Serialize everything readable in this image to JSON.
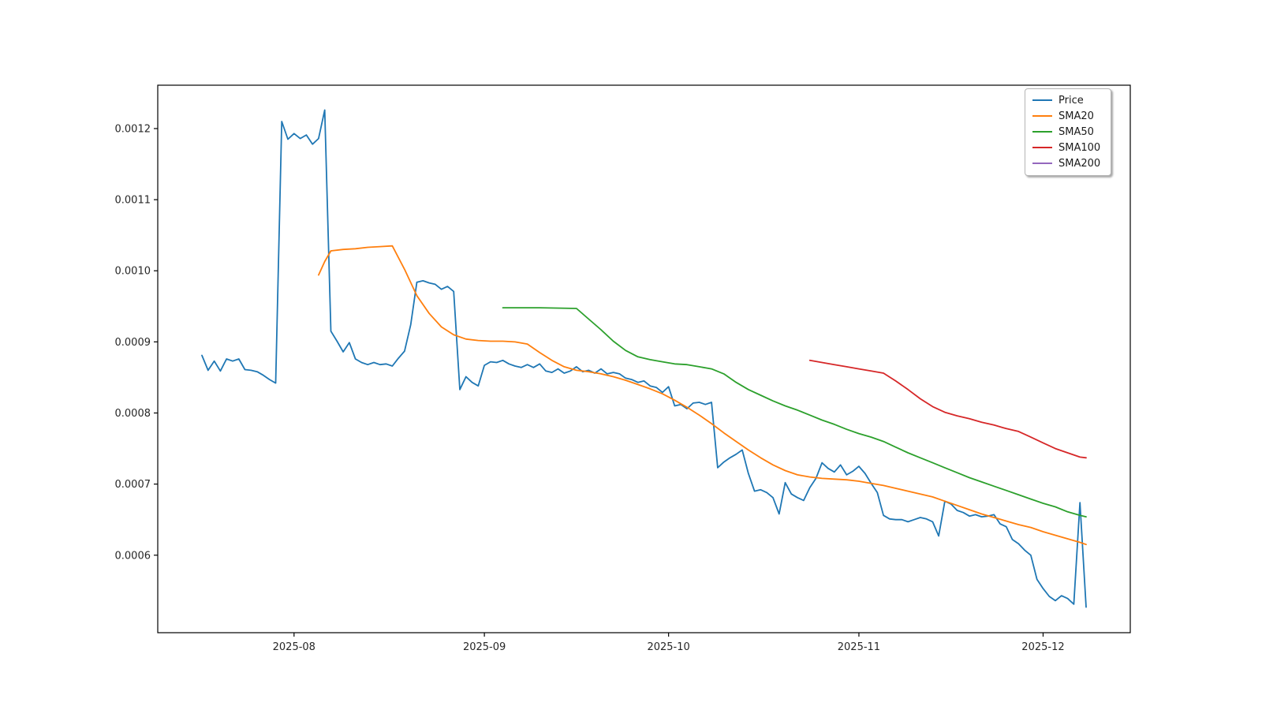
{
  "chart_data": {
    "type": "line",
    "title": "",
    "xlabel": "",
    "ylabel": "",
    "x_axis": {
      "unit": "day_offset",
      "start_date": "2025-07-17",
      "ticks": [
        {
          "day": 15,
          "label": "2025-08"
        },
        {
          "day": 46,
          "label": "2025-09"
        },
        {
          "day": 76,
          "label": "2025-10"
        },
        {
          "day": 107,
          "label": "2025-11"
        },
        {
          "day": 137,
          "label": "2025-12"
        }
      ]
    },
    "y_axis": {
      "ticks": [
        {
          "value": 0.0006,
          "label": "0.0006"
        },
        {
          "value": 0.0007,
          "label": "0.0007"
        },
        {
          "value": 0.0008,
          "label": "0.0008"
        },
        {
          "value": 0.0009,
          "label": "0.0009"
        },
        {
          "value": 0.001,
          "label": "0.0010"
        },
        {
          "value": 0.0011,
          "label": "0.0011"
        },
        {
          "value": 0.0012,
          "label": "0.0012"
        }
      ]
    },
    "xlim": [
      -7.2,
      151.2
    ],
    "ylim": [
      0.000491,
      0.001261
    ],
    "grid": false,
    "frame_color": "#000000",
    "tick_text_color": "#262626",
    "legend": {
      "position": "upper right",
      "entries": [
        "Price",
        "SMA20",
        "SMA50",
        "SMA100",
        "SMA200"
      ]
    },
    "series": [
      {
        "name": "Price",
        "color": "#1f77b4",
        "points": [
          [
            0,
            0.000881
          ],
          [
            1,
            0.00086
          ],
          [
            2,
            0.000873
          ],
          [
            3,
            0.000859
          ],
          [
            4,
            0.000876
          ],
          [
            5,
            0.000873
          ],
          [
            6,
            0.000876
          ],
          [
            7,
            0.000861
          ],
          [
            8,
            0.00086
          ],
          [
            9,
            0.000858
          ],
          [
            10,
            0.000853
          ],
          [
            11,
            0.000847
          ],
          [
            12,
            0.000842
          ],
          [
            13,
            0.00121
          ],
          [
            14,
            0.001185
          ],
          [
            15,
            0.001193
          ],
          [
            16,
            0.001186
          ],
          [
            17,
            0.001191
          ],
          [
            18,
            0.001178
          ],
          [
            19,
            0.001186
          ],
          [
            20,
            0.001226
          ],
          [
            21,
            0.000915
          ],
          [
            22,
            0.000901
          ],
          [
            23,
            0.000886
          ],
          [
            24,
            0.000899
          ],
          [
            25,
            0.000876
          ],
          [
            26,
            0.000871
          ],
          [
            27,
            0.000868
          ],
          [
            28,
            0.000871
          ],
          [
            29,
            0.000868
          ],
          [
            30,
            0.000869
          ],
          [
            31,
            0.000866
          ],
          [
            32,
            0.000877
          ],
          [
            33,
            0.000887
          ],
          [
            34,
            0.000924
          ],
          [
            35,
            0.000984
          ],
          [
            36,
            0.000986
          ],
          [
            37,
            0.000983
          ],
          [
            38,
            0.000981
          ],
          [
            39,
            0.000974
          ],
          [
            40,
            0.000978
          ],
          [
            41,
            0.000971
          ],
          [
            42,
            0.000833
          ],
          [
            43,
            0.000851
          ],
          [
            44,
            0.000843
          ],
          [
            45,
            0.000838
          ],
          [
            46,
            0.000867
          ],
          [
            47,
            0.000872
          ],
          [
            48,
            0.000871
          ],
          [
            49,
            0.000874
          ],
          [
            50,
            0.000869
          ],
          [
            51,
            0.000866
          ],
          [
            52,
            0.000864
          ],
          [
            53,
            0.000868
          ],
          [
            54,
            0.000864
          ],
          [
            55,
            0.000869
          ],
          [
            56,
            0.000859
          ],
          [
            57,
            0.000857
          ],
          [
            58,
            0.000862
          ],
          [
            59,
            0.000856
          ],
          [
            60,
            0.000859
          ],
          [
            61,
            0.000865
          ],
          [
            62,
            0.000858
          ],
          [
            63,
            0.00086
          ],
          [
            64,
            0.000856
          ],
          [
            65,
            0.000862
          ],
          [
            66,
            0.000855
          ],
          [
            67,
            0.000857
          ],
          [
            68,
            0.000855
          ],
          [
            69,
            0.000849
          ],
          [
            70,
            0.000847
          ],
          [
            71,
            0.000843
          ],
          [
            72,
            0.000845
          ],
          [
            73,
            0.000838
          ],
          [
            74,
            0.000836
          ],
          [
            75,
            0.000829
          ],
          [
            76,
            0.000837
          ],
          [
            77,
            0.00081
          ],
          [
            78,
            0.000812
          ],
          [
            79,
            0.000806
          ],
          [
            80,
            0.000814
          ],
          [
            81,
            0.000815
          ],
          [
            82,
            0.000812
          ],
          [
            83,
            0.000815
          ],
          [
            84,
            0.000723
          ],
          [
            85,
            0.000731
          ],
          [
            86,
            0.000737
          ],
          [
            87,
            0.000742
          ],
          [
            88,
            0.000748
          ],
          [
            89,
            0.000715
          ],
          [
            90,
            0.00069
          ],
          [
            91,
            0.000692
          ],
          [
            92,
            0.000688
          ],
          [
            93,
            0.000681
          ],
          [
            94,
            0.000658
          ],
          [
            95,
            0.000702
          ],
          [
            96,
            0.000686
          ],
          [
            97,
            0.000681
          ],
          [
            98,
            0.000677
          ],
          [
            99,
            0.000695
          ],
          [
            100,
            0.000708
          ],
          [
            101,
            0.00073
          ],
          [
            102,
            0.000722
          ],
          [
            103,
            0.000717
          ],
          [
            104,
            0.000727
          ],
          [
            105,
            0.000713
          ],
          [
            106,
            0.000718
          ],
          [
            107,
            0.000725
          ],
          [
            108,
            0.000715
          ],
          [
            109,
            0.000701
          ],
          [
            110,
            0.000688
          ],
          [
            111,
            0.000656
          ],
          [
            112,
            0.000651
          ],
          [
            113,
            0.00065
          ],
          [
            114,
            0.00065
          ],
          [
            115,
            0.000647
          ],
          [
            116,
            0.00065
          ],
          [
            117,
            0.000653
          ],
          [
            118,
            0.000651
          ],
          [
            119,
            0.000647
          ],
          [
            120,
            0.000627
          ],
          [
            121,
            0.000676
          ],
          [
            122,
            0.000672
          ],
          [
            123,
            0.000663
          ],
          [
            124,
            0.00066
          ],
          [
            125,
            0.000655
          ],
          [
            126,
            0.000657
          ],
          [
            127,
            0.000654
          ],
          [
            128,
            0.000655
          ],
          [
            129,
            0.000657
          ],
          [
            130,
            0.000644
          ],
          [
            131,
            0.00064
          ],
          [
            132,
            0.000622
          ],
          [
            133,
            0.000616
          ],
          [
            134,
            0.000607
          ],
          [
            135,
            0.0006
          ],
          [
            136,
            0.000566
          ],
          [
            137,
            0.000553
          ],
          [
            138,
            0.000542
          ],
          [
            139,
            0.000536
          ],
          [
            140,
            0.000543
          ],
          [
            141,
            0.000539
          ],
          [
            142,
            0.000531
          ],
          [
            143,
            0.000674
          ],
          [
            144,
            0.000527
          ]
        ]
      },
      {
        "name": "SMA20",
        "color": "#ff7f0e",
        "points": [
          [
            19,
            0.000994
          ],
          [
            20,
            0.001013
          ],
          [
            21,
            0.001028
          ],
          [
            23,
            0.00103
          ],
          [
            25,
            0.001031
          ],
          [
            27,
            0.001033
          ],
          [
            29,
            0.001034
          ],
          [
            31,
            0.001035
          ],
          [
            33,
            0.001002
          ],
          [
            35,
            0.000965
          ],
          [
            37,
            0.00094
          ],
          [
            39,
            0.000921
          ],
          [
            41,
            0.00091
          ],
          [
            43,
            0.000904
          ],
          [
            45,
            0.000902
          ],
          [
            47,
            0.000901
          ],
          [
            49,
            0.000901
          ],
          [
            51,
            0.0009
          ],
          [
            53,
            0.000897
          ],
          [
            55,
            0.000885
          ],
          [
            57,
            0.000874
          ],
          [
            59,
            0.000865
          ],
          [
            61,
            0.00086
          ],
          [
            63,
            0.000858
          ],
          [
            65,
            0.000855
          ],
          [
            67,
            0.000851
          ],
          [
            69,
            0.000846
          ],
          [
            71,
            0.00084
          ],
          [
            73,
            0.000834
          ],
          [
            75,
            0.000827
          ],
          [
            77,
            0.000818
          ],
          [
            79,
            0.000808
          ],
          [
            81,
            0.000797
          ],
          [
            83,
            0.000785
          ],
          [
            85,
            0.000772
          ],
          [
            87,
            0.00076
          ],
          [
            89,
            0.000748
          ],
          [
            91,
            0.000737
          ],
          [
            93,
            0.000727
          ],
          [
            95,
            0.000719
          ],
          [
            97,
            0.000713
          ],
          [
            99,
            0.00071
          ],
          [
            101,
            0.000708
          ],
          [
            103,
            0.000707
          ],
          [
            105,
            0.000706
          ],
          [
            107,
            0.000704
          ],
          [
            109,
            0.000701
          ],
          [
            111,
            0.000698
          ],
          [
            113,
            0.000694
          ],
          [
            115,
            0.00069
          ],
          [
            117,
            0.000686
          ],
          [
            119,
            0.000682
          ],
          [
            121,
            0.000676
          ],
          [
            123,
            0.00067
          ],
          [
            125,
            0.000664
          ],
          [
            127,
            0.000658
          ],
          [
            129,
            0.000653
          ],
          [
            131,
            0.000648
          ],
          [
            133,
            0.000643
          ],
          [
            135,
            0.000639
          ],
          [
            137,
            0.000633
          ],
          [
            139,
            0.000628
          ],
          [
            141,
            0.000623
          ],
          [
            143,
            0.000618
          ],
          [
            144,
            0.000615
          ]
        ]
      },
      {
        "name": "SMA50",
        "color": "#2ca02c",
        "points": [
          [
            49,
            0.000948
          ],
          [
            55,
            0.000948
          ],
          [
            61,
            0.000947
          ],
          [
            63,
            0.000932
          ],
          [
            65,
            0.000917
          ],
          [
            67,
            0.000901
          ],
          [
            69,
            0.000888
          ],
          [
            71,
            0.000879
          ],
          [
            73,
            0.000875
          ],
          [
            75,
            0.000872
          ],
          [
            77,
            0.000869
          ],
          [
            79,
            0.000868
          ],
          [
            81,
            0.000865
          ],
          [
            83,
            0.000862
          ],
          [
            85,
            0.000855
          ],
          [
            87,
            0.000843
          ],
          [
            89,
            0.000833
          ],
          [
            91,
            0.000825
          ],
          [
            93,
            0.000817
          ],
          [
            95,
            0.00081
          ],
          [
            97,
            0.000804
          ],
          [
            99,
            0.000797
          ],
          [
            101,
            0.00079
          ],
          [
            103,
            0.000784
          ],
          [
            105,
            0.000777
          ],
          [
            107,
            0.000771
          ],
          [
            109,
            0.000766
          ],
          [
            111,
            0.00076
          ],
          [
            113,
            0.000752
          ],
          [
            115,
            0.000744
          ],
          [
            117,
            0.000737
          ],
          [
            119,
            0.00073
          ],
          [
            121,
            0.000723
          ],
          [
            123,
            0.000716
          ],
          [
            125,
            0.000709
          ],
          [
            127,
            0.000703
          ],
          [
            129,
            0.000697
          ],
          [
            131,
            0.000691
          ],
          [
            133,
            0.000685
          ],
          [
            135,
            0.000679
          ],
          [
            137,
            0.000673
          ],
          [
            139,
            0.000668
          ],
          [
            141,
            0.000661
          ],
          [
            143,
            0.000656
          ],
          [
            144,
            0.000654
          ]
        ]
      },
      {
        "name": "SMA100",
        "color": "#d62728",
        "points": [
          [
            99,
            0.000874
          ],
          [
            101,
            0.000871
          ],
          [
            103,
            0.000868
          ],
          [
            105,
            0.000865
          ],
          [
            107,
            0.000862
          ],
          [
            109,
            0.000859
          ],
          [
            111,
            0.000856
          ],
          [
            113,
            0.000845
          ],
          [
            115,
            0.000833
          ],
          [
            117,
            0.00082
          ],
          [
            119,
            0.000809
          ],
          [
            121,
            0.000801
          ],
          [
            123,
            0.000796
          ],
          [
            125,
            0.000792
          ],
          [
            127,
            0.000787
          ],
          [
            129,
            0.000783
          ],
          [
            131,
            0.000778
          ],
          [
            133,
            0.000774
          ],
          [
            135,
            0.000766
          ],
          [
            137,
            0.000758
          ],
          [
            139,
            0.00075
          ],
          [
            141,
            0.000744
          ],
          [
            143,
            0.000738
          ],
          [
            144,
            0.000737
          ]
        ]
      },
      {
        "name": "SMA200",
        "color": "#9467bd",
        "points": []
      }
    ]
  }
}
